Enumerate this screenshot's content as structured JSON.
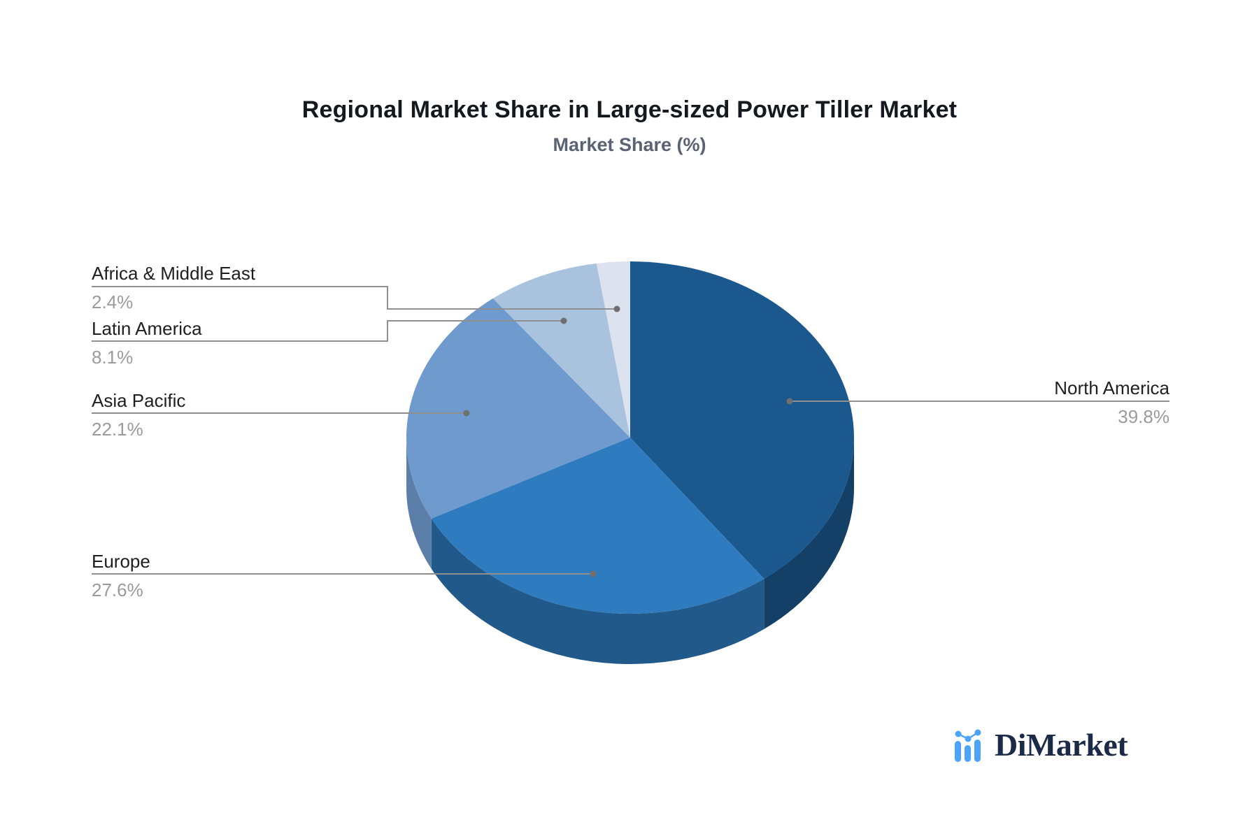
{
  "title": "Regional Market Share in Large-sized Power Tiller Market",
  "subtitle": "Market Share (%)",
  "chart_data": {
    "type": "pie",
    "style": "3d-pie-with-depth",
    "title": "Regional Market Share in Large-sized Power Tiller Market",
    "unit": "%",
    "total": 100,
    "start_angle": "12-o-clock",
    "direction": "clockwise",
    "labels_position": "callouts-with-leader-lines",
    "series": [
      {
        "label": "North America",
        "value": 39.8,
        "percent_label": "39.8%",
        "color": "#1B588D",
        "side_color": "#143F66"
      },
      {
        "label": "Europe",
        "value": 27.6,
        "percent_label": "27.6%",
        "color": "#2E7CBF",
        "side_color": "#22598B"
      },
      {
        "label": "Asia Pacific",
        "value": 22.1,
        "percent_label": "22.1%",
        "color": "#6E9ACD",
        "side_color": "#5C7FA9"
      },
      {
        "label": "Latin America",
        "value": 8.1,
        "percent_label": "8.1%",
        "color": "#A9C3DF",
        "side_color": "#7E9AB8"
      },
      {
        "label": "Africa & Middle East",
        "value": 2.4,
        "percent_label": "2.4%",
        "color": "#DCE3EF",
        "side_color": "#ABB8CC"
      }
    ],
    "callout_line_color": "#8f8f8f",
    "callout_dot_color": "#6f6f6f",
    "label_text_color": "#1f1f1f",
    "percent_text_color": "#9b9b9b"
  },
  "brand": {
    "name": "DiMarket",
    "icon": "mini-bar-line-chart-icon",
    "icon_color": "#4DA3F6",
    "text_color": "#1B2B47"
  }
}
